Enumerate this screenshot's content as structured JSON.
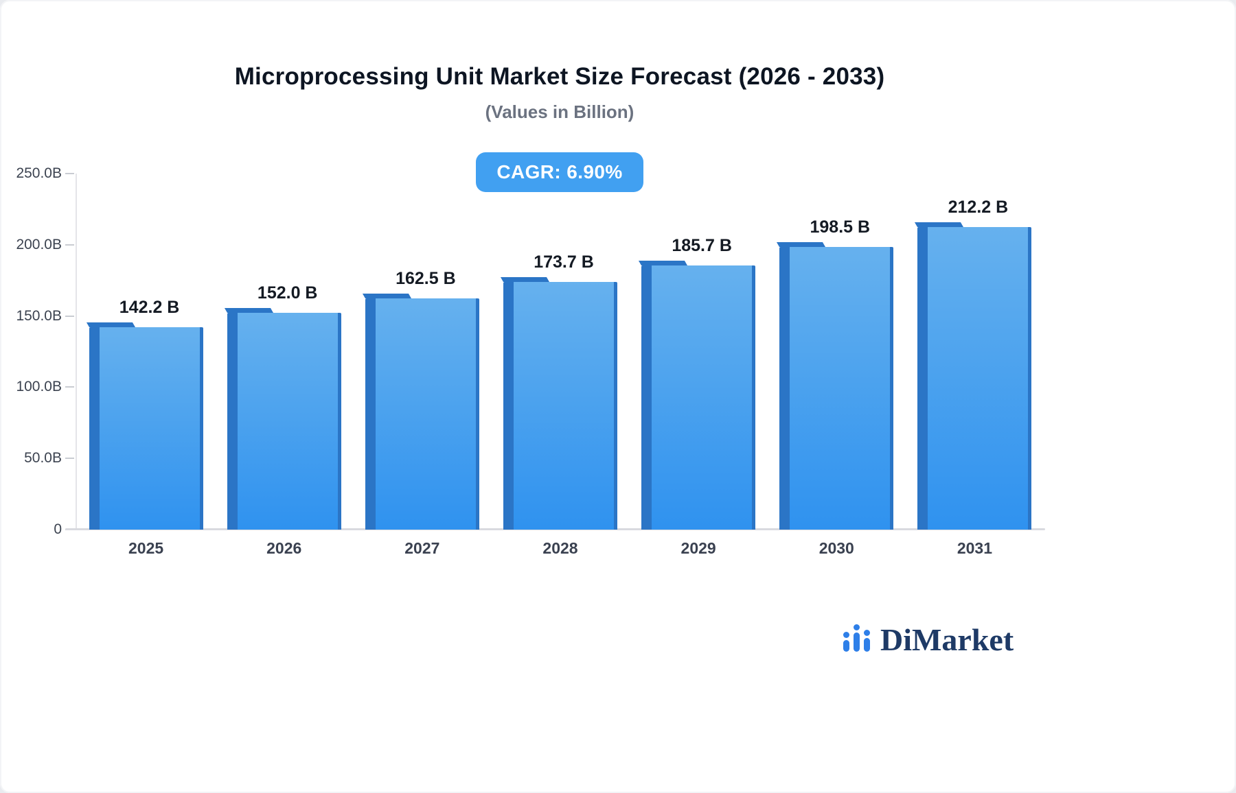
{
  "title": "Microprocessing Unit Market Size Forecast (2026 - 2033)",
  "subtitle": "(Values in Billion)",
  "badge": {
    "label": "CAGR: 6.90%",
    "bg": "#41A0F1"
  },
  "chart_data": {
    "type": "bar",
    "title": "Microprocessing Unit Market Size Forecast (2026 - 2033)",
    "subtitle": "(Values in Billion)",
    "categories": [
      "2025",
      "2026",
      "2027",
      "2028",
      "2029",
      "2030",
      "2031"
    ],
    "values": [
      142.2,
      152.0,
      162.5,
      173.7,
      185.7,
      198.5,
      212.2
    ],
    "value_labels": [
      "142.2 B",
      "152.0 B",
      "162.5 B",
      "173.7 B",
      "185.7 B",
      "198.5 B",
      "212.2 B"
    ],
    "xlabel": "",
    "ylabel": "",
    "ylim": [
      0,
      250
    ],
    "yticks": [
      0,
      50,
      100,
      150,
      200,
      250
    ],
    "ytick_labels": [
      "0",
      "50.0B",
      "100.0B",
      "150.0B",
      "200.0B",
      "250.0B"
    ],
    "grid": false,
    "legend": false,
    "annotation": "CAGR: 6.90%",
    "bar_color_top": "#66B1EE",
    "bar_color_bottom": "#2F92EF",
    "bar_side_color": "#2B75C6"
  },
  "logo": {
    "text": "DiMarket",
    "icon": "bar-chart-icon",
    "text_color": "#1E3A66",
    "icon_color": "#2E7FE8"
  }
}
